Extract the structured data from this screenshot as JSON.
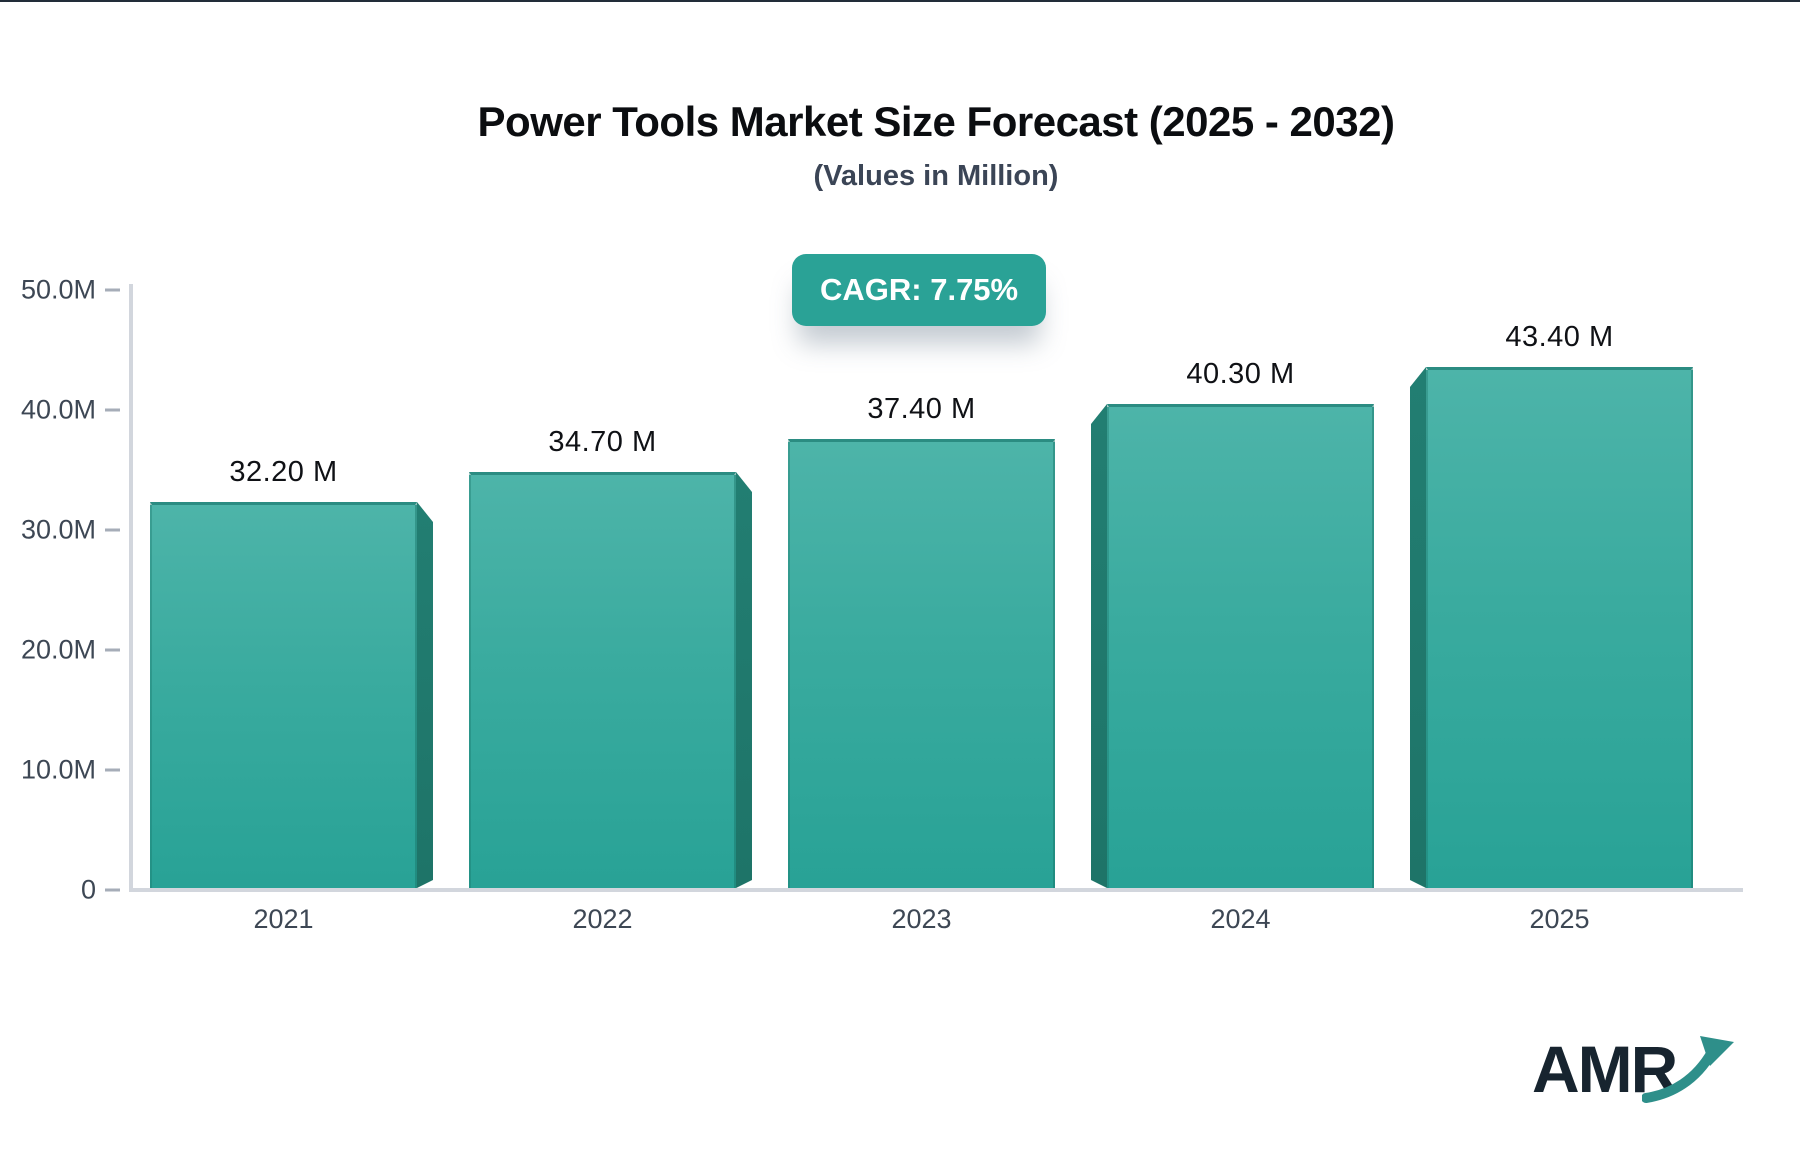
{
  "header": {
    "title": "Power Tools Market Size Forecast (2025 - 2032)",
    "subtitle": "(Values in Million)",
    "cagr_label": "CAGR: 7.75%"
  },
  "chart_data": {
    "type": "bar",
    "title": "Power Tools Market Size Forecast (2025 - 2032)",
    "subtitle": "(Values in Million)",
    "categories": [
      "2021",
      "2022",
      "2023",
      "2024",
      "2025"
    ],
    "values": [
      32.2,
      34.7,
      37.4,
      40.3,
      43.4
    ],
    "value_labels": [
      "32.20 M",
      "34.70 M",
      "37.40 M",
      "40.30 M",
      "43.40 M"
    ],
    "unit": "Million",
    "cagr": "7.75%",
    "ylim": [
      0,
      50
    ],
    "yticks": [
      {
        "label": "50.0M",
        "value": 50
      },
      {
        "label": "40.0M",
        "value": 40
      },
      {
        "label": "30.0M",
        "value": 30
      },
      {
        "label": "20.0M",
        "value": 20
      },
      {
        "label": "10.0M",
        "value": 10
      },
      {
        "label": "0",
        "value": 0
      }
    ],
    "grid": false,
    "legend": false
  },
  "logo": {
    "text": "AMR"
  },
  "colors": {
    "badge_teal": "#2aa296",
    "bar_gradient_top": "#4db4a9",
    "bar_gradient_bottom": "#28a296",
    "bar_side_dark": "#1f796d",
    "bar_top_edge": "#2b8c82",
    "axis_gray": "#d2d6dd",
    "tick_text": "#3d4754",
    "logo_dark": "#17242f",
    "logo_teal": "#2e8f8a"
  }
}
